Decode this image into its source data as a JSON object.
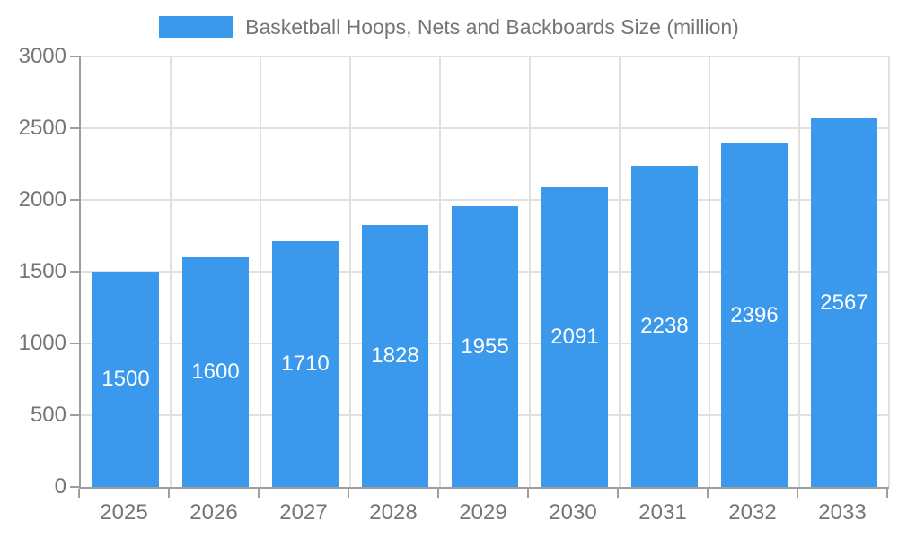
{
  "legend": {
    "label": "Basketball Hoops, Nets and Backboards Size (million)"
  },
  "chart_data": {
    "type": "bar",
    "title": "Basketball Hoops, Nets and Backboards Size (million)",
    "categories": [
      "2025",
      "2026",
      "2027",
      "2028",
      "2029",
      "2030",
      "2031",
      "2032",
      "2033"
    ],
    "values": [
      1500,
      1600,
      1710,
      1828,
      1955,
      2091,
      2238,
      2396,
      2567
    ],
    "xlabel": "",
    "ylabel": "",
    "ylim": [
      0,
      3000
    ],
    "y_ticks": [
      0,
      500,
      1000,
      1500,
      2000,
      2500,
      3000
    ],
    "bar_labels_visible": true,
    "legend_position": "top-center",
    "grid": true,
    "colors": {
      "bar": "#3A99EC",
      "bar_label": "#FFFFFF",
      "axis": "#9E9E9E",
      "gridline": "#E0E0E0",
      "text": "#757575",
      "background": "#FFFFFF"
    }
  }
}
